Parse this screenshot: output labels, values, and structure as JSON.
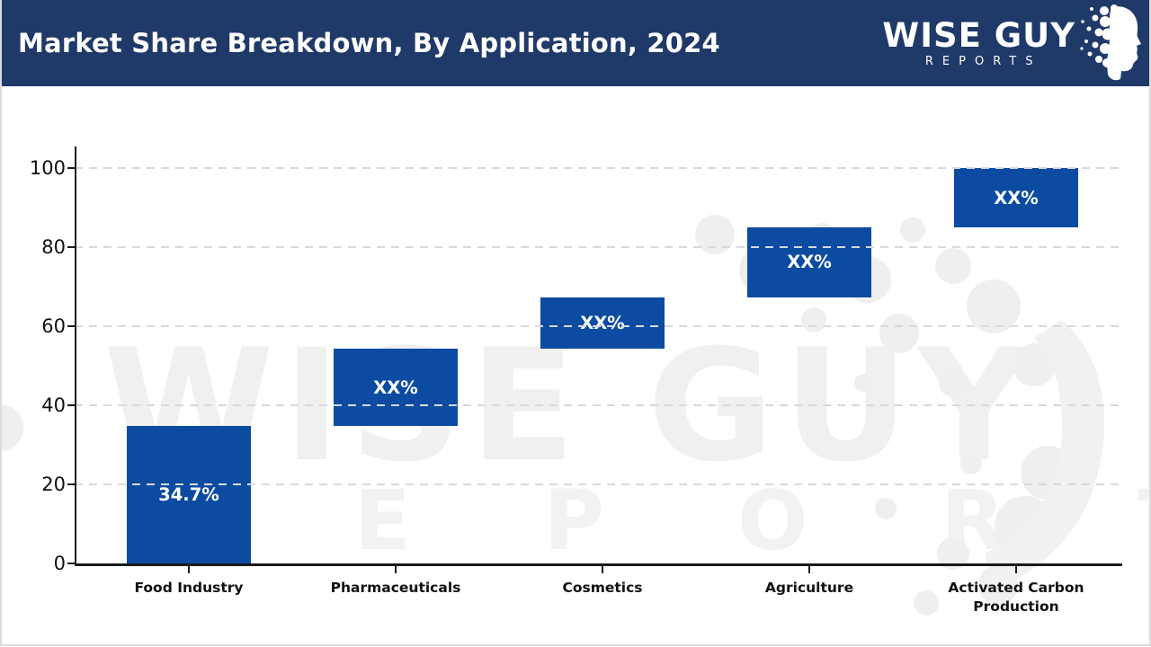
{
  "header": {
    "title": "Market Share Breakdown, By Application, 2024",
    "bg_color": "#1f3968",
    "logo": {
      "line1": "WISE GUY",
      "line2": "REPORTS",
      "head_icon": "dotted-head-profile"
    }
  },
  "watermark": {
    "line1": "WISE GUY",
    "line2": "REPORTS",
    "head_icon": "dotted-head-profile"
  },
  "chart_data": {
    "type": "bar",
    "subtype": "waterfall",
    "title": "Market Share Breakdown, By Application, 2024",
    "categories": [
      "Food Industry",
      "Pharmaceuticals",
      "Cosmetics",
      "Agriculture",
      "Activated Carbon Production"
    ],
    "bars": [
      {
        "category": "Food Industry",
        "base": 0,
        "top": 34.7,
        "label": "34.7%"
      },
      {
        "category": "Pharmaceuticals",
        "base": 34.7,
        "top": 54.3,
        "label": "XX%"
      },
      {
        "category": "Cosmetics",
        "base": 54.3,
        "top": 67.3,
        "label": "XX%"
      },
      {
        "category": "Agriculture",
        "base": 67.3,
        "top": 85,
        "label": "XX%"
      },
      {
        "category": "Activated Carbon Production",
        "base": 85,
        "top": 100,
        "label": "XX%"
      }
    ],
    "xlabel": "",
    "ylabel": "",
    "ylim": [
      0,
      100
    ],
    "yticks": [
      0,
      20,
      40,
      60,
      80,
      100
    ],
    "grid": "horizontal-dashed",
    "legend": "none",
    "bar_color": "#0b4ba1",
    "bar_label_color": "#ffffff",
    "axis_color": "#1a1a1a",
    "gridline_color": "#d9d9d9"
  }
}
